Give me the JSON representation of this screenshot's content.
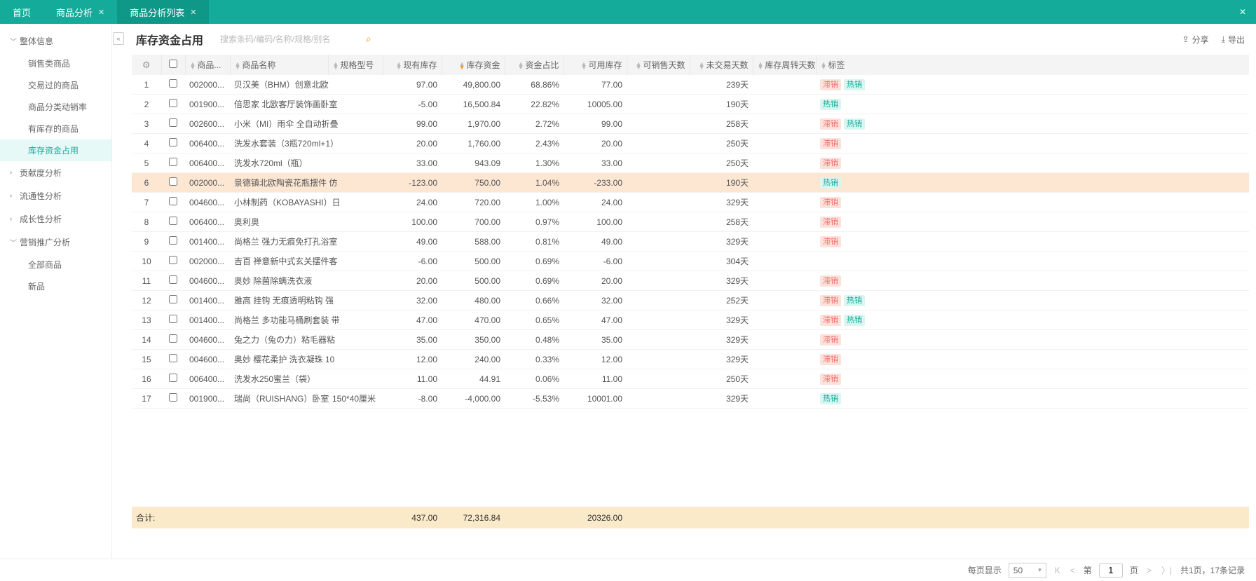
{
  "tabs": [
    {
      "label": "首页",
      "closable": false,
      "active": false
    },
    {
      "label": "商品分析",
      "closable": true,
      "active": false
    },
    {
      "label": "商品分析列表",
      "closable": true,
      "active": true
    }
  ],
  "sidebar": {
    "groups": [
      {
        "label": "整体信息",
        "expanded": true,
        "items": [
          {
            "label": "销售类商品",
            "active": false
          },
          {
            "label": "交易过的商品",
            "active": false
          },
          {
            "label": "商品分类动销率",
            "active": false
          },
          {
            "label": "有库存的商品",
            "active": false
          },
          {
            "label": "库存资金占用",
            "active": true
          }
        ]
      },
      {
        "label": "贡献度分析",
        "expanded": false,
        "items": []
      },
      {
        "label": "流通性分析",
        "expanded": false,
        "items": []
      },
      {
        "label": "成长性分析",
        "expanded": false,
        "items": []
      },
      {
        "label": "营销推广分析",
        "expanded": true,
        "items": [
          {
            "label": "全部商品",
            "active": false
          },
          {
            "label": "新品",
            "active": false
          }
        ]
      }
    ]
  },
  "page": {
    "title": "库存资金占用",
    "search_placeholder": "搜索条码/编码/名称/规格/别名",
    "share_label": "分享",
    "export_label": "导出"
  },
  "columns": {
    "idx": "",
    "code": "商品...",
    "name": "商品名称",
    "spec": "规格型号",
    "stock": "现有库存",
    "fund": "库存资金",
    "ratio": "资金占比",
    "avail": "可用库存",
    "saleDays": "可销售天数",
    "noTradeDays": "未交易天数",
    "turnDays": "库存周转天数",
    "tags": "标签"
  },
  "rows": [
    {
      "i": 1,
      "code": "002000...",
      "name": "贝汉美（BHM）创意北欧",
      "spec": "",
      "stock": "97.00",
      "fund": "49,800.00",
      "ratio": "68.86%",
      "avail": "77.00",
      "saleDays": "",
      "noTradeDays": "239天",
      "turnDays": "",
      "tags": [
        "滞销",
        "热销"
      ],
      "hl": false
    },
    {
      "i": 2,
      "code": "001900...",
      "name": "倍思家 北欧客厅装饰画卧室",
      "spec": "",
      "stock": "-5.00",
      "fund": "16,500.84",
      "ratio": "22.82%",
      "avail": "10005.00",
      "saleDays": "",
      "noTradeDays": "190天",
      "turnDays": "",
      "tags": [
        "热销"
      ],
      "hl": false
    },
    {
      "i": 3,
      "code": "002600...",
      "name": "小米（MI）雨伞 全自动折叠",
      "spec": "",
      "stock": "99.00",
      "fund": "1,970.00",
      "ratio": "2.72%",
      "avail": "99.00",
      "saleDays": "",
      "noTradeDays": "258天",
      "turnDays": "",
      "tags": [
        "滞销",
        "热销"
      ],
      "hl": false
    },
    {
      "i": 4,
      "code": "006400...",
      "name": "洗发水套装（3瓶720ml+1）",
      "spec": "",
      "stock": "20.00",
      "fund": "1,760.00",
      "ratio": "2.43%",
      "avail": "20.00",
      "saleDays": "",
      "noTradeDays": "250天",
      "turnDays": "",
      "tags": [
        "滞销"
      ],
      "hl": false
    },
    {
      "i": 5,
      "code": "006400...",
      "name": "洗发水720ml（瓶）",
      "spec": "",
      "stock": "33.00",
      "fund": "943.09",
      "ratio": "1.30%",
      "avail": "33.00",
      "saleDays": "",
      "noTradeDays": "250天",
      "turnDays": "",
      "tags": [
        "滞销"
      ],
      "hl": false
    },
    {
      "i": 6,
      "code": "002000...",
      "name": "景德镇北欧陶瓷花瓶摆件 仿",
      "spec": "",
      "stock": "-123.00",
      "fund": "750.00",
      "ratio": "1.04%",
      "avail": "-233.00",
      "saleDays": "",
      "noTradeDays": "190天",
      "turnDays": "",
      "tags": [
        "热销"
      ],
      "hl": true
    },
    {
      "i": 7,
      "code": "004600...",
      "name": "小林制药（KOBAYASHI）日",
      "spec": "",
      "stock": "24.00",
      "fund": "720.00",
      "ratio": "1.00%",
      "avail": "24.00",
      "saleDays": "",
      "noTradeDays": "329天",
      "turnDays": "",
      "tags": [
        "滞销"
      ],
      "hl": false
    },
    {
      "i": 8,
      "code": "006400...",
      "name": "奥利奥",
      "spec": "",
      "stock": "100.00",
      "fund": "700.00",
      "ratio": "0.97%",
      "avail": "100.00",
      "saleDays": "",
      "noTradeDays": "258天",
      "turnDays": "",
      "tags": [
        "滞销"
      ],
      "hl": false
    },
    {
      "i": 9,
      "code": "001400...",
      "name": "尚格兰 强力无痕免打孔浴室",
      "spec": "",
      "stock": "49.00",
      "fund": "588.00",
      "ratio": "0.81%",
      "avail": "49.00",
      "saleDays": "",
      "noTradeDays": "329天",
      "turnDays": "",
      "tags": [
        "滞销"
      ],
      "hl": false
    },
    {
      "i": 10,
      "code": "002000...",
      "name": "吉百 禅意新中式玄关摆件客",
      "spec": "",
      "stock": "-6.00",
      "fund": "500.00",
      "ratio": "0.69%",
      "avail": "-6.00",
      "saleDays": "",
      "noTradeDays": "304天",
      "turnDays": "",
      "tags": [],
      "hl": false
    },
    {
      "i": 11,
      "code": "004600...",
      "name": "奥妙 除菌除螨洗衣液",
      "spec": "",
      "stock": "20.00",
      "fund": "500.00",
      "ratio": "0.69%",
      "avail": "20.00",
      "saleDays": "",
      "noTradeDays": "329天",
      "turnDays": "",
      "tags": [
        "滞销"
      ],
      "hl": false
    },
    {
      "i": 12,
      "code": "001400...",
      "name": "雅高 挂钩 无痕透明粘钩 强",
      "spec": "",
      "stock": "32.00",
      "fund": "480.00",
      "ratio": "0.66%",
      "avail": "32.00",
      "saleDays": "",
      "noTradeDays": "252天",
      "turnDays": "",
      "tags": [
        "滞销",
        "热销"
      ],
      "hl": false
    },
    {
      "i": 13,
      "code": "001400...",
      "name": "尚格兰 多功能马桶刷套装 带",
      "spec": "",
      "stock": "47.00",
      "fund": "470.00",
      "ratio": "0.65%",
      "avail": "47.00",
      "saleDays": "",
      "noTradeDays": "329天",
      "turnDays": "",
      "tags": [
        "滞销",
        "热销"
      ],
      "hl": false
    },
    {
      "i": 14,
      "code": "004600...",
      "name": "兔之力（兔の力）粘毛器粘",
      "spec": "",
      "stock": "35.00",
      "fund": "350.00",
      "ratio": "0.48%",
      "avail": "35.00",
      "saleDays": "",
      "noTradeDays": "329天",
      "turnDays": "",
      "tags": [
        "滞销"
      ],
      "hl": false
    },
    {
      "i": 15,
      "code": "004600...",
      "name": "奥妙 樱花柔护 洗衣凝珠 10",
      "spec": "",
      "stock": "12.00",
      "fund": "240.00",
      "ratio": "0.33%",
      "avail": "12.00",
      "saleDays": "",
      "noTradeDays": "329天",
      "turnDays": "",
      "tags": [
        "滞销"
      ],
      "hl": false
    },
    {
      "i": 16,
      "code": "006400...",
      "name": "洗发水250蜜兰（袋）",
      "spec": "",
      "stock": "11.00",
      "fund": "44.91",
      "ratio": "0.06%",
      "avail": "11.00",
      "saleDays": "",
      "noTradeDays": "250天",
      "turnDays": "",
      "tags": [
        "滞销"
      ],
      "hl": false
    },
    {
      "i": 17,
      "code": "001900...",
      "name": "瑞尚（RUISHANG）卧室",
      "spec": "150*40厘米",
      "stock": "-8.00",
      "fund": "-4,000.00",
      "ratio": "-5.53%",
      "avail": "10001.00",
      "saleDays": "",
      "noTradeDays": "329天",
      "turnDays": "",
      "tags": [
        "热销"
      ],
      "hl": false
    }
  ],
  "totals": {
    "label": "合计:",
    "stock": "437.00",
    "fund": "72,316.84",
    "avail": "20326.00"
  },
  "pager": {
    "per_page_label": "每页显示",
    "per_page_value": "50",
    "page_prefix": "第",
    "page_value": "1",
    "page_suffix": "页",
    "summary": "共1页，17条记录"
  },
  "tag_styles": {
    "滞销": "tag-warm",
    "热销": "tag-hot"
  },
  "colors": {
    "brand": "#15ab9a",
    "brand_dark": "#0f9788",
    "highlight_row": "#fde7d3",
    "footer_row": "#fbeac9",
    "accent_icon": "#f59a23"
  }
}
